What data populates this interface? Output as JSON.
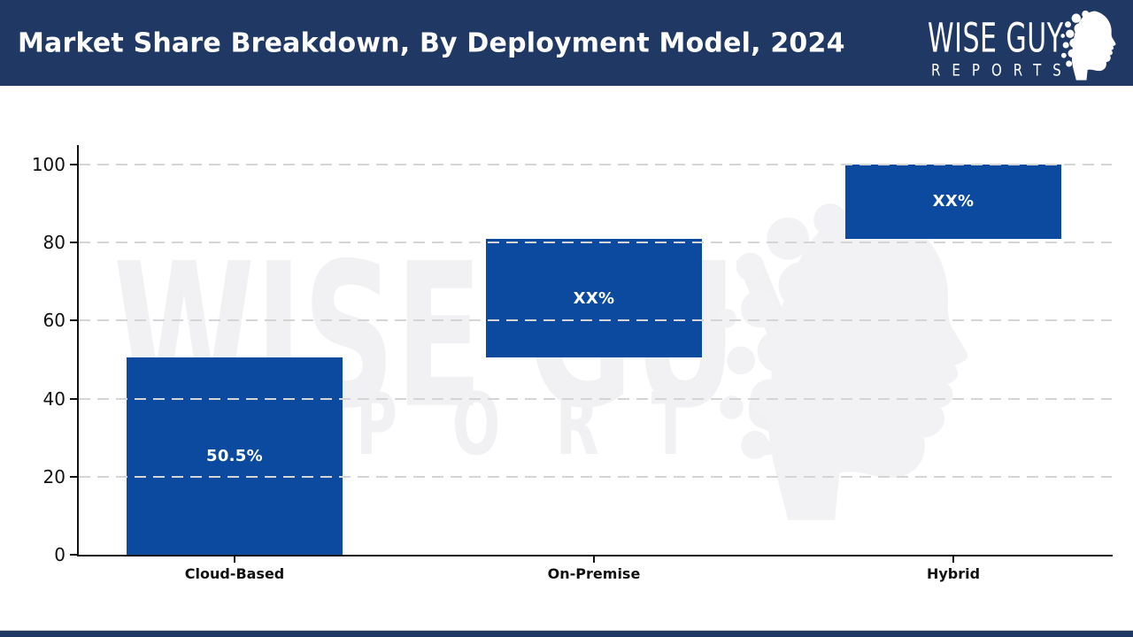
{
  "header": {
    "title": "Market Share Breakdown, By Deployment Model, 2024",
    "logo": {
      "line1": "WISE GUY",
      "line2": "REPORTS"
    }
  },
  "watermark": {
    "line1": "WISE GUY",
    "line2": "REPORTS"
  },
  "chart_data": {
    "type": "bar",
    "subtype": "floating-segment-columns (waterfall style, segments stack to 100%)",
    "title": "Market Share Breakdown, By Deployment Model, 2024",
    "categories": [
      "Cloud-Based",
      "On-Premise",
      "Hybrid"
    ],
    "segments": [
      {
        "category": "Cloud-Based",
        "label": "50.5%",
        "value": 50.5,
        "start": 0,
        "end": 50.5
      },
      {
        "category": "On-Premise",
        "label": "XX%",
        "value": null,
        "start": 50.5,
        "end": 81
      },
      {
        "category": "Hybrid",
        "label": "XX%",
        "value": null,
        "start": 81,
        "end": 100
      }
    ],
    "xlabel": "",
    "ylabel": "",
    "ylim": [
      0,
      100
    ],
    "yticks": [
      0,
      20,
      40,
      60,
      80,
      100
    ],
    "grid": "horizontal dashed, drawn over bars",
    "legend": "none"
  },
  "colors": {
    "header_bg": "#1F3864",
    "title_color": "#ffffff",
    "bar_color": "#0B4A9F",
    "label_on_bar": "#ffffff",
    "grid": "#d5d5d5",
    "axis": "#111111",
    "tick": "#111111",
    "watermark": "#f1f1f3"
  }
}
